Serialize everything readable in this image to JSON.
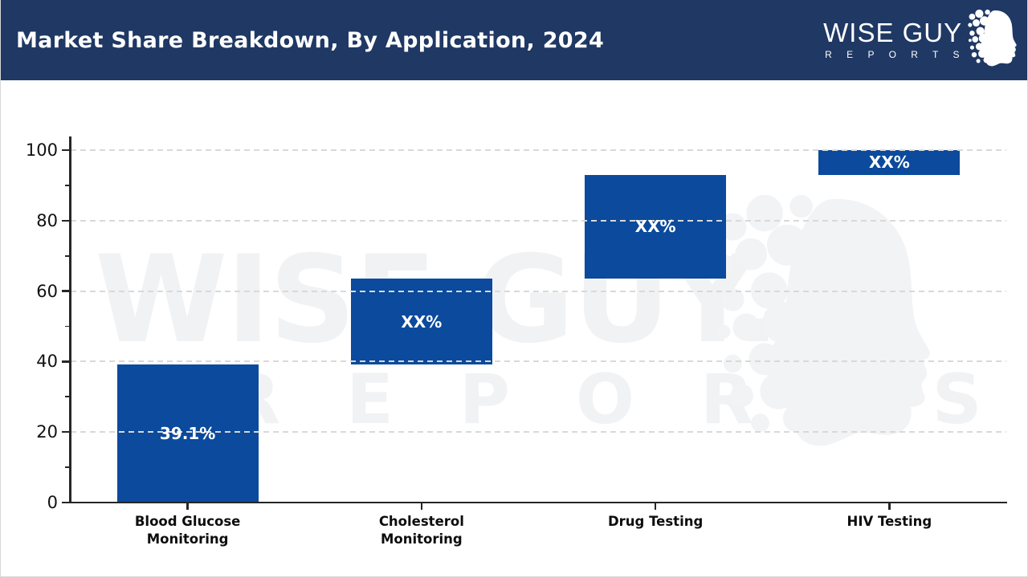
{
  "header": {
    "title": "Market Share Breakdown, By Application, 2024",
    "logo": {
      "name": "WISE GUY",
      "subtitle": "R E P O R T S"
    }
  },
  "watermark": {
    "line1": "WISE GUY.",
    "line2": "R E P O R T S"
  },
  "chart_data": {
    "type": "bar",
    "subtype": "waterfall",
    "title": "Market Share Breakdown, By Application, 2024",
    "xlabel": "",
    "ylabel": "",
    "categories": [
      "Blood Glucose Monitoring",
      "Cholesterol Monitoring",
      "Drug Testing",
      "HIV Testing"
    ],
    "category_label_lines": [
      [
        "Blood Glucose",
        "Monitoring"
      ],
      [
        "Cholesterol",
        "Monitoring"
      ],
      [
        "Drug Testing"
      ],
      [
        "HIV Testing"
      ]
    ],
    "segments": [
      {
        "category": "Blood Glucose Monitoring",
        "start": 0,
        "end": 39.1,
        "label": "39.1%"
      },
      {
        "category": "Cholesterol Monitoring",
        "start": 39.1,
        "end": 63.5,
        "label": "XX%"
      },
      {
        "category": "Drug Testing",
        "start": 63.5,
        "end": 93.0,
        "label": "XX%"
      },
      {
        "category": "HIV Testing",
        "start": 93.0,
        "end": 100.0,
        "label": "XX%"
      }
    ],
    "yticks": [
      0,
      20,
      40,
      60,
      80,
      100
    ],
    "yticks_minor": [
      10,
      30,
      50,
      70,
      90
    ],
    "ylim": [
      0,
      104
    ],
    "grid": "horizontal-dashed",
    "legend": "none",
    "bar_color": "#0b4a9c",
    "bar_label_color": "#ffffff"
  },
  "colors": {
    "header_bg": "#1f3864",
    "bar": "#0b4a9c",
    "grid": "#d9d9d9",
    "axis": "#262626",
    "watermark": "#f1f2f4",
    "frame": "#d6d6d6"
  }
}
